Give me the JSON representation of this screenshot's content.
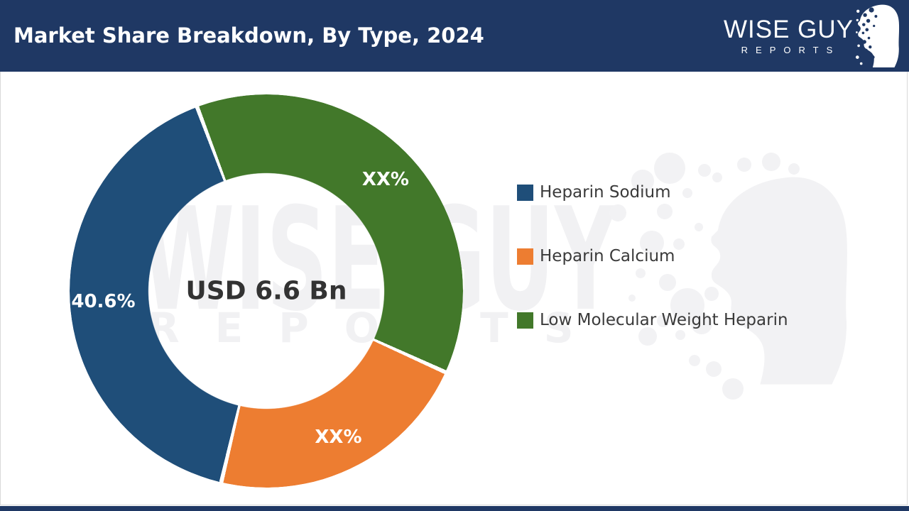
{
  "header": {
    "logo": {
      "line1": "WISE GUY",
      "line2": "REPORTS"
    }
  },
  "watermark": {
    "line1": "WISE GUY",
    "line2": "REPORTS"
  },
  "chart_data": {
    "type": "donut",
    "title": "Market Share Breakdown, By Type, 2024",
    "center_label": "USD 6.6 Bn",
    "start_angle_deg": 339.4,
    "segments": [
      {
        "name": "Low Molecular Weight Heparin",
        "value_pct": 37.5,
        "display": "XX%",
        "color": "#42782A"
      },
      {
        "name": "Heparin Calcium",
        "value_pct": 21.9,
        "display": "XX%",
        "color": "#ED7D31"
      },
      {
        "name": "Heparin Sodium",
        "value_pct": 40.6,
        "display": "40.6%",
        "color": "#1F4E79"
      }
    ],
    "legend": [
      {
        "label": "Heparin Sodium",
        "color": "#1F4E79"
      },
      {
        "label": "Heparin Calcium",
        "color": "#ED7D31"
      },
      {
        "label": "Low Molecular Weight Heparin",
        "color": "#42782A"
      }
    ],
    "legend_position": "right",
    "colors": {
      "header": "#1F3864",
      "frame": "#d9d9d9",
      "watermark": "#f1f1f3",
      "text": "#333333"
    }
  }
}
